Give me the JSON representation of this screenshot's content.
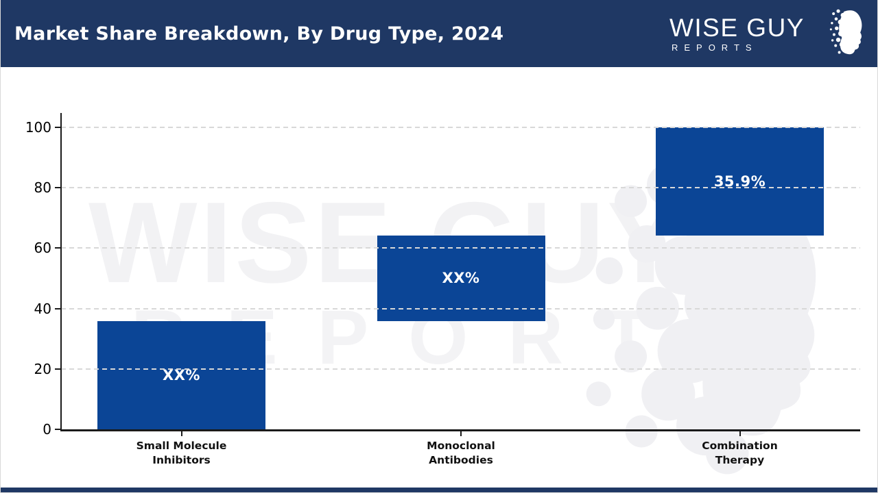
{
  "header": {
    "title": "Market Share Breakdown, By Drug Type, 2024",
    "logo": {
      "line1": "WISE GUY",
      "line2": "REPORTS"
    }
  },
  "watermark": {
    "line1": "WISE GUY",
    "line2": "REPORTS"
  },
  "colors": {
    "header_bg": "#1f3864",
    "bar_blue": "#0b4596",
    "axis": "#1a1a1a",
    "gridline": "#d8d8d8",
    "watermark_gray": "#f2f2f4",
    "bar_label_text": "#ffffff",
    "category_label_text": "#111111",
    "footer_bar": "#1f3864"
  },
  "chart_data": {
    "type": "bar",
    "subtype": "waterfall",
    "title": "Market Share Breakdown, By Drug Type, 2024",
    "xlabel": "",
    "ylabel": "",
    "ylim": [
      0,
      100
    ],
    "yticks": [
      0,
      20,
      40,
      60,
      80,
      100
    ],
    "grid": "horizontal dashed, drawn over bars",
    "legend": "none",
    "categories": [
      "Small Molecule Inhibitors",
      "Monoclonal Antibodies",
      "Combination Therapy"
    ],
    "segments": [
      {
        "category": "Small Molecule Inhibitors",
        "label_lines": [
          "Small Molecule",
          "Inhibitors"
        ],
        "start": 0,
        "end": 35.9,
        "bar_label": "XX%"
      },
      {
        "category": "Monoclonal Antibodies",
        "label_lines": [
          "Monoclonal",
          "Antibodies"
        ],
        "start": 35.9,
        "end": 64.1,
        "bar_label": "XX%"
      },
      {
        "category": "Combination Therapy",
        "label_lines": [
          "Combination",
          "Therapy"
        ],
        "start": 64.1,
        "end": 100,
        "bar_label": "35.9%"
      }
    ]
  }
}
